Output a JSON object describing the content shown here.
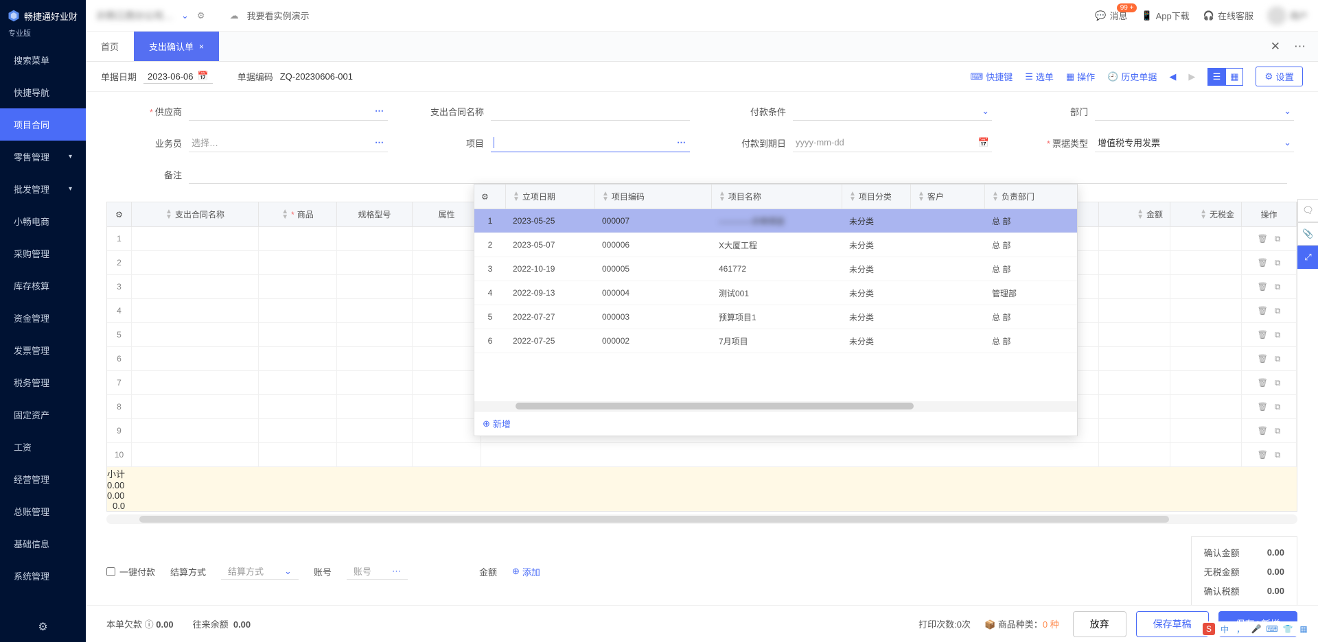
{
  "brand": {
    "name": "畅捷通好业财",
    "edition": "专业版",
    "company": "示例江西分公司…"
  },
  "header": {
    "demo_link": "我要看实例演示",
    "msg": "消息",
    "msg_badge": "99 +",
    "app": "App下载",
    "service": "在线客服"
  },
  "sidebar": {
    "items": [
      {
        "label": "搜索菜单"
      },
      {
        "label": "快捷导航"
      },
      {
        "label": "项目合同",
        "active": true
      },
      {
        "label": "零售管理",
        "sub": true
      },
      {
        "label": "批发管理",
        "sub": true
      },
      {
        "label": "小畅电商"
      },
      {
        "label": "采购管理"
      },
      {
        "label": "库存核算"
      },
      {
        "label": "资金管理"
      },
      {
        "label": "发票管理"
      },
      {
        "label": "税务管理"
      },
      {
        "label": "固定资产"
      },
      {
        "label": "工资"
      },
      {
        "label": "经营管理"
      },
      {
        "label": "总账管理"
      },
      {
        "label": "基础信息"
      },
      {
        "label": "系统管理"
      }
    ]
  },
  "tabs": {
    "home": "首页",
    "active": "支出确认单"
  },
  "docbar": {
    "date_label": "单据日期",
    "date": "2023-06-06",
    "code_label": "单据编码",
    "code": "ZQ-20230606-001",
    "quick": "快捷键",
    "select": "选单",
    "ops": "操作",
    "history": "历史单据",
    "settings": "设置"
  },
  "form": {
    "supplier": "供应商",
    "contract_name": "支出合同名称",
    "pay_terms": "付款条件",
    "dept": "部门",
    "salesman": "业务员",
    "salesman_ph": "选择…",
    "project": "项目",
    "paydue": "付款到期日",
    "paydue_ph": "yyyy-mm-dd",
    "invoice_type": "票据类型",
    "invoice_type_val": "增值税专用发票",
    "remark": "备注"
  },
  "grid": {
    "cols": {
      "contract": "支出合同名称",
      "goods": "商品",
      "spec": "规格型号",
      "attr": "属性",
      "amount": "金额",
      "amount_notax": "无税金",
      "ops": "操作"
    },
    "subtotal": "小计",
    "subtotal_vals": {
      "amount": "0.00",
      "amount_notax": "0.00",
      "amount_tax": "0.0"
    },
    "rows": 10
  },
  "project_dropdown": {
    "cols": {
      "date": "立项日期",
      "code": "项目编码",
      "name": "项目名称",
      "cat": "项目分类",
      "cust": "客户",
      "dept": "负责部门"
    },
    "rows": [
      {
        "n": "1",
        "date": "2023-05-25",
        "code": "000007",
        "name": "————示例项目",
        "cat": "未分类",
        "cust": "",
        "dept": "总 部",
        "sel": true,
        "blur": true
      },
      {
        "n": "2",
        "date": "2023-05-07",
        "code": "000006",
        "name": "X大厦工程",
        "cat": "未分类",
        "cust": "",
        "dept": "总 部"
      },
      {
        "n": "3",
        "date": "2022-10-19",
        "code": "000005",
        "name": "461772",
        "cat": "未分类",
        "cust": "",
        "dept": "总 部"
      },
      {
        "n": "4",
        "date": "2022-09-13",
        "code": "000004",
        "name": "测试001",
        "cat": "未分类",
        "cust": "",
        "dept": "管理部"
      },
      {
        "n": "5",
        "date": "2022-07-27",
        "code": "000003",
        "name": "预算项目1",
        "cat": "未分类",
        "cust": "",
        "dept": "总 部"
      },
      {
        "n": "6",
        "date": "2022-07-25",
        "code": "000002",
        "name": "7月项目",
        "cat": "未分类",
        "cust": "",
        "dept": "总 部"
      }
    ],
    "add": "新增"
  },
  "settle": {
    "onekey": "一键付款",
    "method_lbl": "结算方式",
    "method_ph": "结算方式",
    "acct_lbl": "账号",
    "acct_ph": "账号",
    "amount_lbl": "金额",
    "add": "添加"
  },
  "totals": {
    "confirm_amt": "确认金额",
    "confirm_amt_v": "0.00",
    "notax_amt": "无税金额",
    "notax_amt_v": "0.00",
    "tax_amt": "确认税额",
    "tax_amt_v": "0.00"
  },
  "bottom": {
    "owe_lbl": "本单欠款",
    "owe_v": "0.00",
    "bal_lbl": "往来余额",
    "bal_v": "0.00",
    "print_lbl": "打印次数:",
    "print_v": "0次",
    "kinds_lbl": "商品种类：",
    "kinds_v": "0 种",
    "discard": "放弃",
    "draft": "保存草稿",
    "save_new": "保存&新增"
  },
  "ime": {
    "s": "S",
    "zh": "中"
  }
}
